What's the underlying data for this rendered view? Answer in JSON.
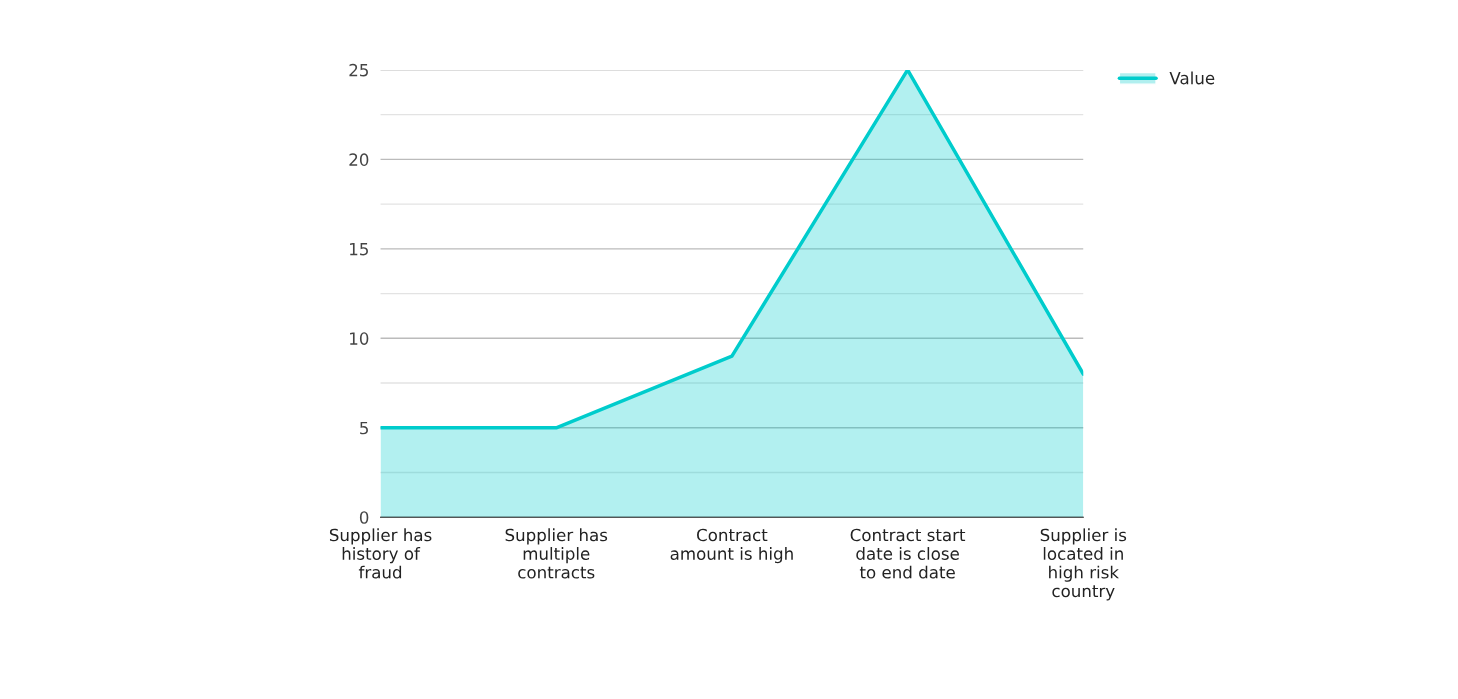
{
  "chart_data": {
    "type": "area",
    "categories": [
      "Supplier has history of fraud",
      "Supplier has multiple contracts",
      "Contract amount is high",
      "Contract start date is close to end date",
      "Supplier is located in high risk country"
    ],
    "series": [
      {
        "name": "Value",
        "color": "#00cccc",
        "values": [
          5,
          5,
          9,
          25,
          8
        ]
      }
    ],
    "ylim": [
      0,
      25
    ],
    "yticks": [
      0,
      {
        "value": 2.5,
        "label": null
      },
      5,
      {
        "value": 7.5,
        "label": null
      },
      10,
      {
        "value": 12.5,
        "label": null
      },
      15,
      {
        "value": 17.5,
        "label": null
      },
      20,
      {
        "value": 22.5,
        "label": null
      },
      25
    ],
    "grid": "y",
    "legend": "top right"
  }
}
